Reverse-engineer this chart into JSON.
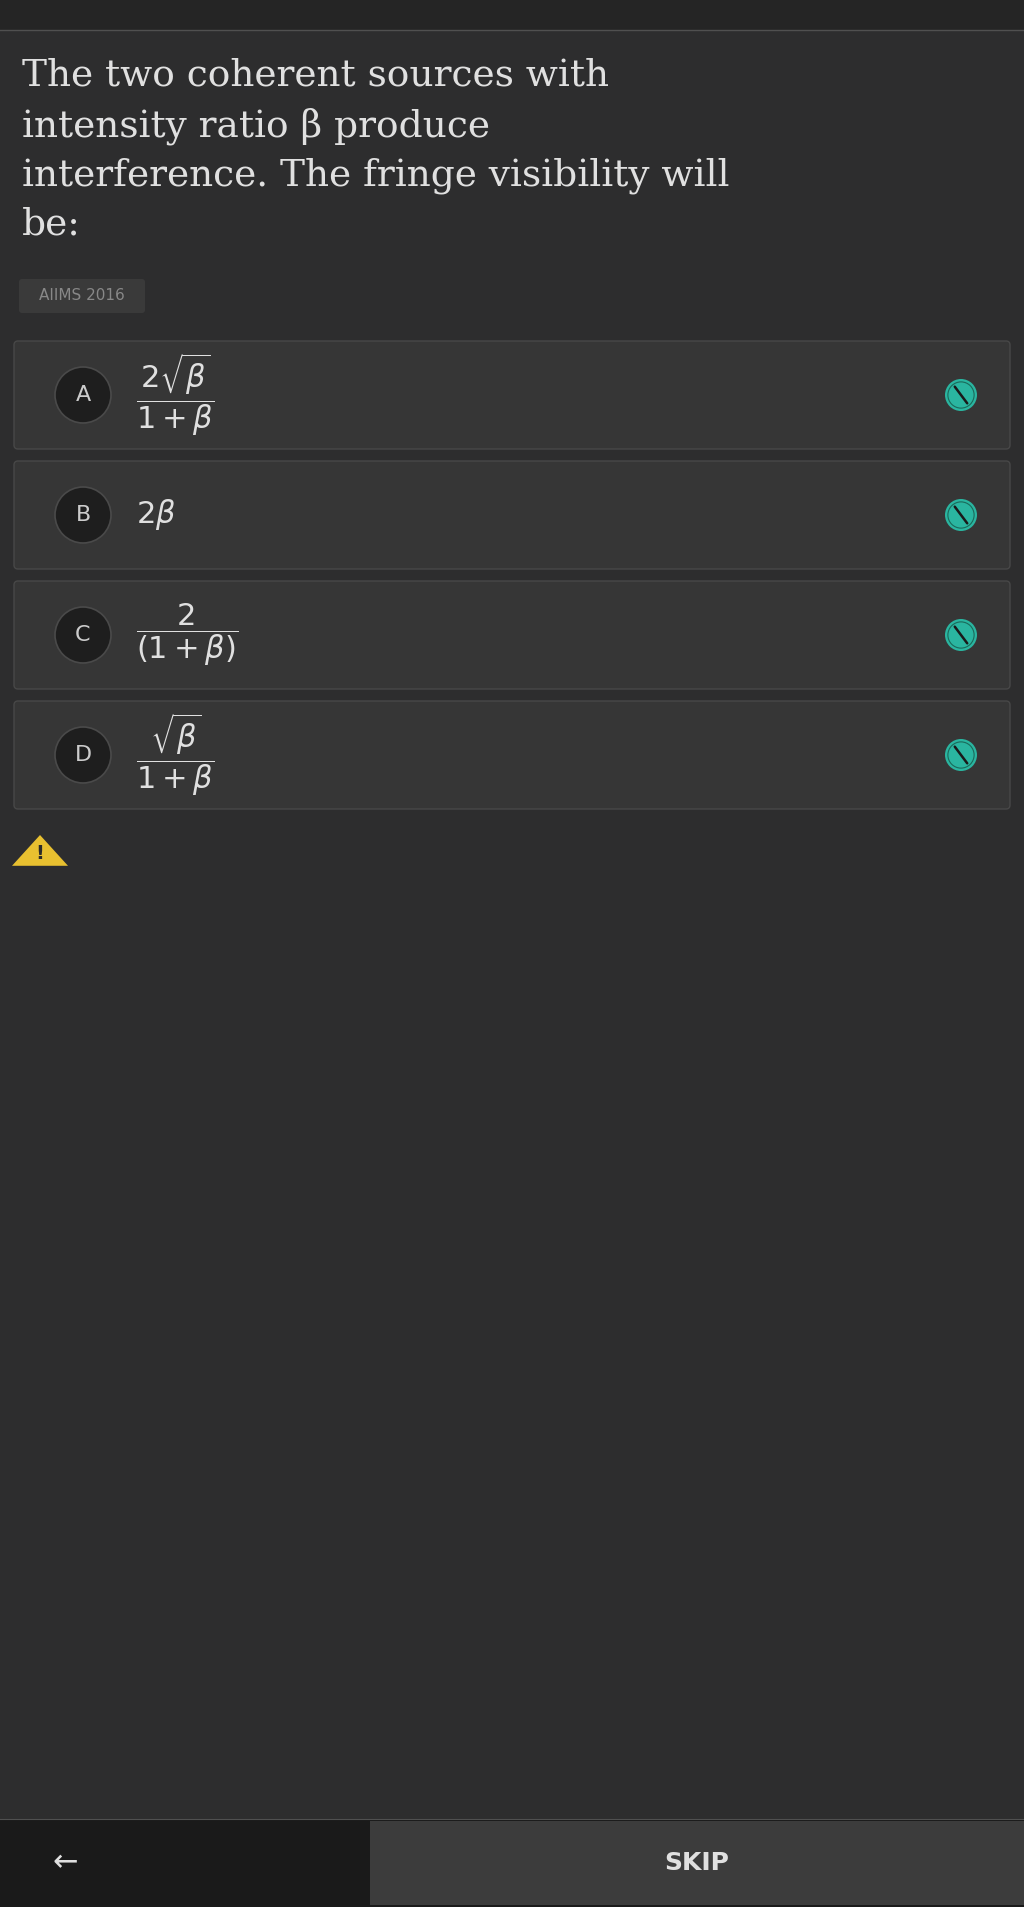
{
  "bg_color": "#2d2d2e",
  "card_bg_color": "#363636",
  "card_border_color": "#484848",
  "text_color": "#e0e0e0",
  "label_bg_color": "#1e1e1e",
  "label_text_color": "#cccccc",
  "teal_icon_color": "#2ab5a0",
  "source_label": "AIIMS 2016",
  "question_text": "The two coherent sources with\nintensity ratio β produce\ninterference. The fringe visibility will\nbe:",
  "options": [
    {
      "label": "A",
      "formula": "$\\dfrac{2\\sqrt{\\beta}}{1+\\beta}$"
    },
    {
      "label": "B",
      "formula": "$2\\beta$"
    },
    {
      "label": "C",
      "formula": "$\\dfrac{2}{(1+\\beta)}$"
    },
    {
      "label": "D",
      "formula": "$\\dfrac{\\sqrt{\\beta}}{1+\\beta}$"
    }
  ],
  "bottom_bar_color": "#1a1a1a",
  "skip_text": "SKIP",
  "back_arrow": "←",
  "warning_color": "#e8c030",
  "separator_color": "#505050",
  "top_bar_color": "#252525",
  "badge_bg_color": "#3a3a3a",
  "badge_text_color": "#888888"
}
